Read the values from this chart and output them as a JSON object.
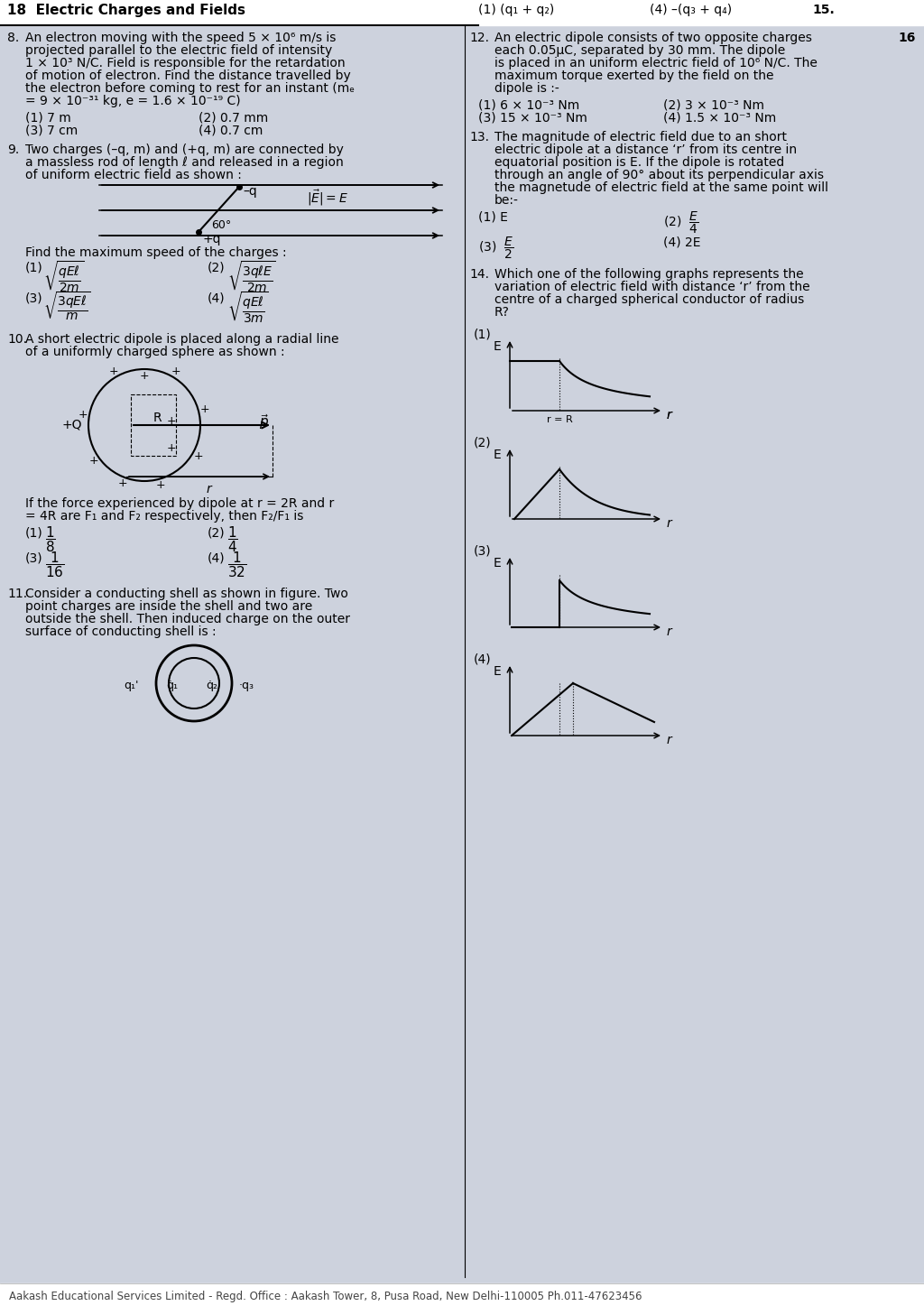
{
  "title": "18  Electric Charges and Fields",
  "bg_color": "#cdd2dd",
  "footer": "Aakash Educational Services Limited - Regd. Office : Aakash Tower, 8, Pusa Road, New Delhi-110005 Ph.011-47623456",
  "header_right_1": "(1) (q₁ + q₂)",
  "header_right_2": "(4) –(q₃ + q₄)",
  "header_page": "15.",
  "q8_lines": [
    "An electron moving with the speed 5 × 10⁶ m/s is",
    "projected parallel to the electric field of intensity",
    "1 × 10³ N/C. Field is responsible for the retardation",
    "of motion of electron. Find the distance travelled by",
    "the electron before coming to rest for an instant (mₑ",
    "= 9 × 10⁻³¹ kg, e = 1.6 × 10⁻¹⁹ C)"
  ],
  "q8_opts_r1": [
    "(1) 7 m",
    "(2) 0.7 mm"
  ],
  "q8_opts_r2": [
    "(3) 7 cm",
    "(4) 0.7 cm"
  ],
  "q9_lines": [
    "Two charges (–q, m) and (+q, m) are connected by",
    "a massless rod of length ℓ and released in a region",
    "of uniform electric field as shown :"
  ],
  "q9_find": "Find the maximum speed of the charges :",
  "q10_lines": [
    "A short electric dipole is placed along a radial line",
    "of a uniformly charged sphere as shown :"
  ],
  "q10_mid1": "If the force experienced by dipole at r = 2R and r",
  "q10_mid2": "= 4R are F₁ and F₂ respectively, then F₂/F₁ is",
  "q10_opts_r1": [
    "(1) 1/8",
    "(2) 1/4"
  ],
  "q10_opts_r2": [
    "(3) 1/16",
    "(4) 1/32"
  ],
  "q11_lines": [
    "Consider a conducting shell as shown in figure. Two",
    "point charges are inside the shell and two are",
    "outside the shell. Then induced charge on the outer",
    "surface of conducting shell is :"
  ],
  "q12_lines": [
    "An electric dipole consists of two opposite charges",
    "each 0.05μC, separated by 30 mm. The dipole",
    "is placed in an uniform electric field of 10⁶ N/C. The",
    "maximum torque exerted by the field on the",
    "dipole is :-"
  ],
  "q12_opts_r1": [
    "(1) 6 × 10⁻³ Nm",
    "(2) 3 × 10⁻³ Nm"
  ],
  "q12_opts_r2": [
    "(3) 15 × 10⁻³ Nm",
    "(4) 1.5 × 10⁻³ Nm"
  ],
  "q13_lines": [
    "The magnitude of electric field due to an short",
    "electric dipole at a distance ‘r’ from its centre in",
    "equatorial position is E. If the dipole is rotated",
    "through an angle of 90° about its perpendicular axis",
    "the magnetude of electric field at the same point will",
    "be:-"
  ],
  "q14_lines": [
    "Which one of the following graphs represents the",
    "variation of electric field with distance ‘r’ from the",
    "centre of a charged spherical conductor of radius",
    "R?"
  ]
}
